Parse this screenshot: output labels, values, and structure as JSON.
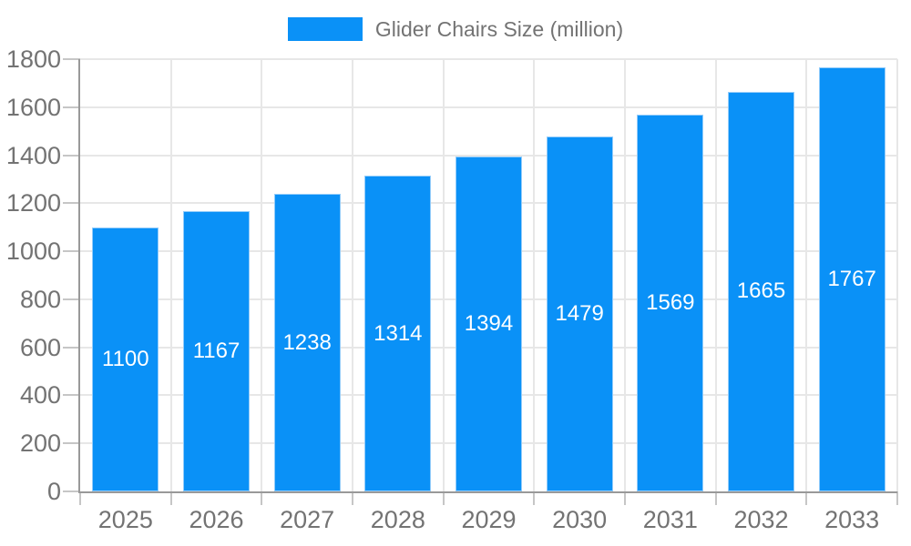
{
  "legend": {
    "label": "Glider Chairs Size (million)"
  },
  "chart_data": {
    "type": "bar",
    "title": "Glider Chairs Size (million)",
    "series_name": "Glider Chairs Size (million)",
    "categories": [
      "2025",
      "2026",
      "2027",
      "2028",
      "2029",
      "2030",
      "2031",
      "2032",
      "2033"
    ],
    "values": [
      1100,
      1167,
      1238,
      1314,
      1394,
      1479,
      1569,
      1665,
      1767
    ],
    "yticks": [
      0,
      200,
      400,
      600,
      800,
      1000,
      1200,
      1400,
      1600,
      1800
    ],
    "ylim": [
      0,
      1800
    ],
    "xlabel": "",
    "ylabel": "",
    "grid": true,
    "legend_position": "top",
    "value_labels": "inside-center",
    "colors": {
      "bar": "#0a91f7",
      "bar_border": "#93ccfa",
      "grid_line": "#e7e7e7",
      "axis_line": "#999999",
      "tick": "#c6c6c6",
      "axis_text": "#737373",
      "value_label": "#ffffff",
      "background": "#ffffff"
    }
  }
}
